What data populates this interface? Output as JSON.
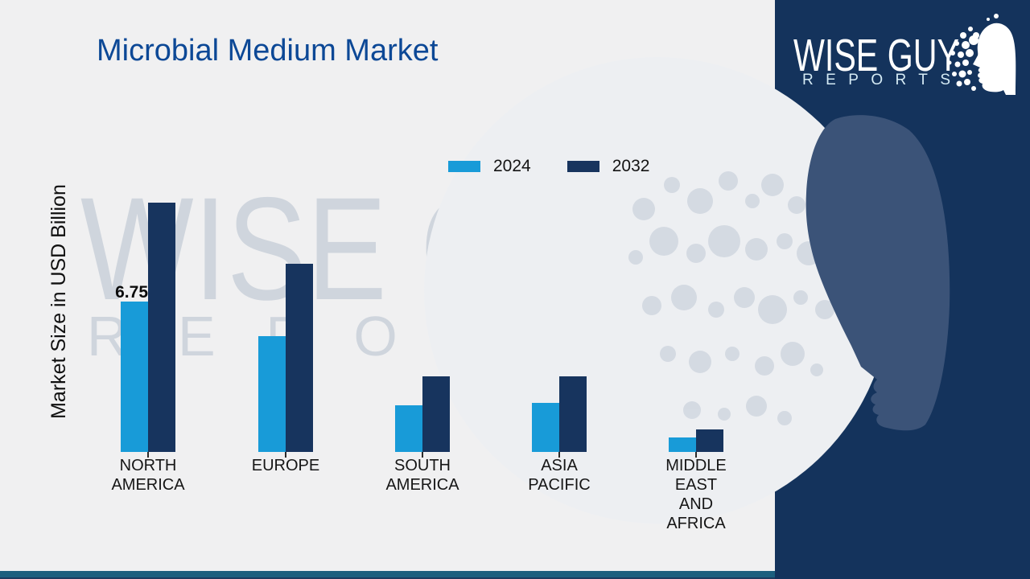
{
  "page": {
    "background": "#f0f0f1",
    "footer_bar_color": "#1d5f7e"
  },
  "header": {
    "title": "Microbial Medium Market",
    "title_color": "#0c4896"
  },
  "brand": {
    "line1": "WISE GUY",
    "line2": "REPORTS",
    "panel_color": "#14335c",
    "face_icon": "wiseguy-face-icon",
    "text_color": "#ffffff",
    "subtext_color": "#d5ebf5"
  },
  "watermark": {
    "line1": "WISE GUY",
    "line2": "REPORTS",
    "color": "#cfd5dd"
  },
  "chart_data": {
    "type": "bar",
    "title": "Microbial Medium Market",
    "xlabel": "",
    "ylabel": "Market Size in USD Billion",
    "ylim": [
      0,
      12
    ],
    "grid": false,
    "legend_position": "top",
    "categories": [
      "NORTH AMERICA",
      "EUROPE",
      "SOUTH AMERICA",
      "ASIA PACIFIC",
      "MIDDLE EAST AND AFRICA"
    ],
    "series": [
      {
        "name": "2024",
        "color": "#189bd8",
        "values": [
          6.75,
          5.2,
          2.1,
          2.2,
          0.65
        ]
      },
      {
        "name": "2032",
        "color": "#17345e",
        "values": [
          11.2,
          8.45,
          3.4,
          3.4,
          1.0
        ]
      }
    ],
    "data_labels": [
      {
        "series": "2024",
        "category": "NORTH AMERICA",
        "text": "6.75"
      }
    ]
  }
}
